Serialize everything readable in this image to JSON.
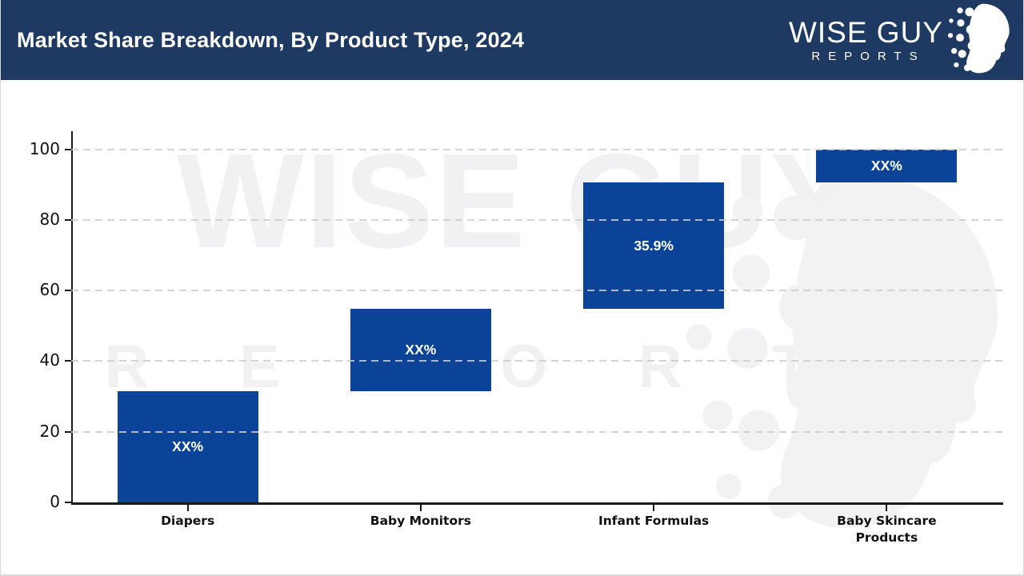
{
  "header": {
    "title": "Market Share Breakdown, By Product Type, 2024",
    "brand_line1": "WISE GUY",
    "brand_line2": "REPORTS"
  },
  "watermark": {
    "line1": "WISE GUY",
    "line2": "R E P O R T S"
  },
  "colors": {
    "header_bg": "#1e3a63",
    "bar": "#0a4397",
    "bar_label": "#ffffff",
    "axis": "#1a1a1a",
    "grid": "#d6d6d6",
    "watermark": "#f1f1f4"
  },
  "chart_data": {
    "type": "bar",
    "subtype": "waterfall",
    "title": "Market Share Breakdown, By Product Type, 2024",
    "xlabel": "",
    "ylabel": "",
    "categories": [
      "Diapers",
      "Baby Monitors",
      "Infant Formulas",
      "Baby Skincare Products"
    ],
    "segments": [
      {
        "category": "Diapers",
        "start": 0,
        "end": 31.4,
        "label": "XX%"
      },
      {
        "category": "Baby Monitors",
        "start": 31.4,
        "end": 54.7,
        "label": "XX%"
      },
      {
        "category": "Infant Formulas",
        "start": 54.7,
        "end": 90.6,
        "label": "35.9%"
      },
      {
        "category": "Baby Skincare Products",
        "start": 90.6,
        "end": 100,
        "label": "XX%"
      }
    ],
    "yticks": [
      0,
      20,
      40,
      60,
      80,
      100
    ],
    "ylim": [
      0,
      105
    ],
    "grid": true,
    "gridline_style": "dashed",
    "legend": "none"
  }
}
